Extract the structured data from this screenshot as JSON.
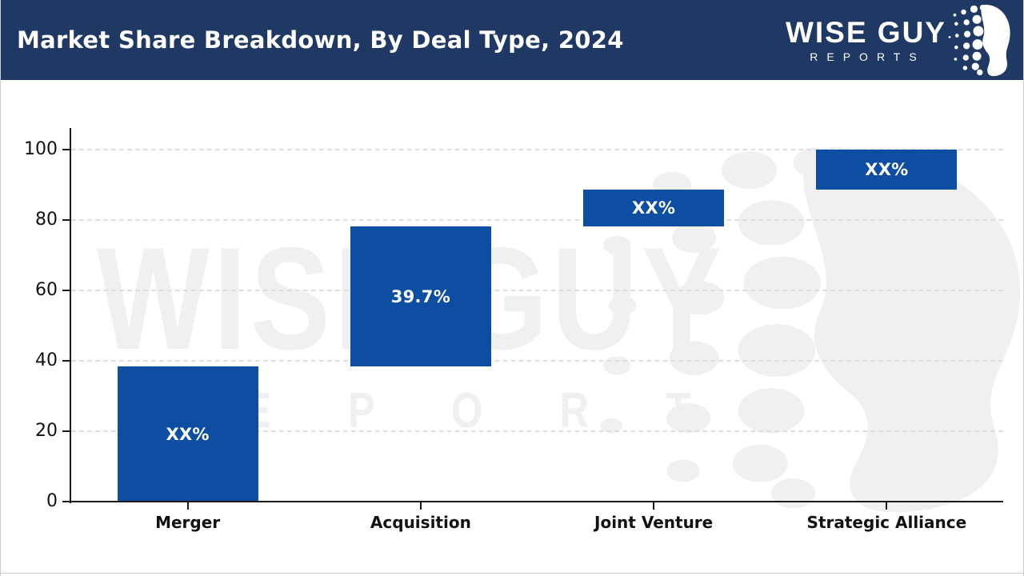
{
  "header": {
    "title": "Market Share Breakdown, By Deal Type, 2024",
    "logo": {
      "line1": "WISE GUY",
      "line2": "REPORTS"
    }
  },
  "watermark": {
    "line1": "WISE GUY",
    "line2": "R E P O R T S"
  },
  "colors": {
    "header_bg": "#1f3864",
    "bar": "#0d4da2",
    "bar_label": "#ffffff",
    "axis": "#1a1a1a",
    "gridline": "#dedede",
    "watermark": "#f0f0f2"
  },
  "chart_data": {
    "type": "bar",
    "subtype": "waterfall",
    "title": "Market Share Breakdown, By Deal Type, 2024",
    "categories": [
      "Merger",
      "Acquisition",
      "Joint Venture",
      "Strategic Alliance"
    ],
    "values": [
      38.4,
      39.7,
      10.5,
      11.4
    ],
    "segments": [
      {
        "category": "Merger",
        "start": 0,
        "end": 38.4,
        "label": "XX%"
      },
      {
        "category": "Acquisition",
        "start": 38.4,
        "end": 78.1,
        "label": "39.7%"
      },
      {
        "category": "Joint Venture",
        "start": 78.1,
        "end": 88.6,
        "label": "XX%"
      },
      {
        "category": "Strategic Alliance",
        "start": 88.6,
        "end": 100,
        "label": "XX%"
      }
    ],
    "yticks": [
      0,
      20,
      40,
      60,
      80,
      100
    ],
    "ylim": [
      0,
      106
    ],
    "xlabel": "",
    "ylabel": "",
    "grid": "horizontal-dashed",
    "legend": "none"
  }
}
